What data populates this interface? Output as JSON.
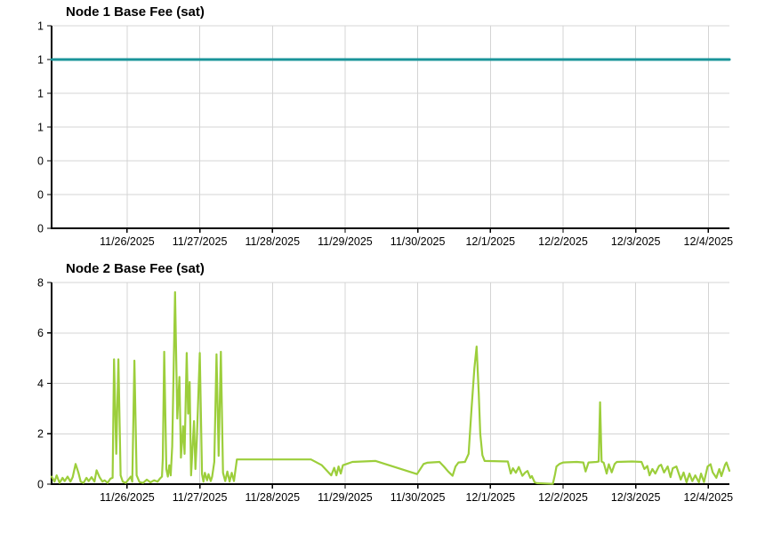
{
  "page": {
    "background": "#ffffff"
  },
  "chart_data": [
    {
      "type": "line",
      "title": "Node 1 Base Fee (sat)",
      "series_name": "Node 1 Base Fee",
      "line_color": "#1A949A",
      "grid_color": "#D4D4D4",
      "axis_color": "#000000",
      "grid": true,
      "legend": "none",
      "ylim": [
        0,
        1.2
      ],
      "xlim": [
        -1.04,
        8.29
      ],
      "yticks": [
        {
          "v": 1.2,
          "label": "1"
        },
        {
          "v": 1.0,
          "label": "1"
        },
        {
          "v": 0.8,
          "label": "1"
        },
        {
          "v": 0.6,
          "label": "1"
        },
        {
          "v": 0.4,
          "label": "0"
        },
        {
          "v": 0.2,
          "label": "0"
        },
        {
          "v": 0.0,
          "label": "0"
        }
      ],
      "xticks": [
        {
          "v": 0,
          "label": "11/26/2025"
        },
        {
          "v": 1,
          "label": "11/27/2025"
        },
        {
          "v": 2,
          "label": "11/28/2025"
        },
        {
          "v": 3,
          "label": "11/29/2025"
        },
        {
          "v": 4,
          "label": "11/30/2025"
        },
        {
          "v": 5,
          "label": "12/1/2025"
        },
        {
          "v": 6,
          "label": "12/2/2025"
        },
        {
          "v": 7,
          "label": "12/3/2025"
        },
        {
          "v": 8,
          "label": "12/4/2025"
        }
      ],
      "points": [
        [
          -1.04,
          1
        ],
        [
          8.29,
          1
        ]
      ]
    },
    {
      "type": "line",
      "title": "Node 2 Base Fee (sat)",
      "series_name": "Node 2 Base Fee",
      "line_color": "#9CCE3B",
      "grid_color": "#D4D4D4",
      "axis_color": "#000000",
      "grid": true,
      "legend": "none",
      "ylim": [
        0,
        8
      ],
      "xlim": [
        -1.04,
        8.29
      ],
      "yticks": [
        {
          "v": 8,
          "label": "8"
        },
        {
          "v": 6,
          "label": "6"
        },
        {
          "v": 4,
          "label": "4"
        },
        {
          "v": 2,
          "label": "2"
        },
        {
          "v": 0,
          "label": "0"
        }
      ],
      "xticks": [
        {
          "v": 0,
          "label": "11/26/2025"
        },
        {
          "v": 1,
          "label": "11/27/2025"
        },
        {
          "v": 2,
          "label": "11/28/2025"
        },
        {
          "v": 3,
          "label": "11/29/2025"
        },
        {
          "v": 4,
          "label": "11/30/2025"
        },
        {
          "v": 5,
          "label": "12/1/2025"
        },
        {
          "v": 6,
          "label": "12/2/2025"
        },
        {
          "v": 7,
          "label": "12/3/2025"
        },
        {
          "v": 8,
          "label": "12/4/2025"
        }
      ],
      "points": [
        [
          -1.04,
          0.3
        ],
        [
          -1.0,
          0.1
        ],
        [
          -0.97,
          0.35
        ],
        [
          -0.93,
          0.05
        ],
        [
          -0.89,
          0.25
        ],
        [
          -0.86,
          0.12
        ],
        [
          -0.82,
          0.3
        ],
        [
          -0.78,
          0.1
        ],
        [
          -0.75,
          0.28
        ],
        [
          -0.71,
          0.8
        ],
        [
          -0.67,
          0.45
        ],
        [
          -0.64,
          0.1
        ],
        [
          -0.6,
          0.05
        ],
        [
          -0.56,
          0.25
        ],
        [
          -0.53,
          0.12
        ],
        [
          -0.49,
          0.28
        ],
        [
          -0.45,
          0.1
        ],
        [
          -0.42,
          0.55
        ],
        [
          -0.38,
          0.28
        ],
        [
          -0.34,
          0.1
        ],
        [
          -0.31,
          0.15
        ],
        [
          -0.27,
          0.05
        ],
        [
          -0.23,
          0.22
        ],
        [
          -0.2,
          0.25
        ],
        [
          -0.18,
          4.95
        ],
        [
          -0.15,
          1.2
        ],
        [
          -0.12,
          4.95
        ],
        [
          -0.09,
          0.35
        ],
        [
          -0.06,
          0.1
        ],
        [
          -0.02,
          0.05
        ],
        [
          0.01,
          0.15
        ],
        [
          0.05,
          0.3
        ],
        [
          0.07,
          0.1
        ],
        [
          0.1,
          4.9
        ],
        [
          0.13,
          0.35
        ],
        [
          0.17,
          0.08
        ],
        [
          0.22,
          0.05
        ],
        [
          0.27,
          0.18
        ],
        [
          0.32,
          0.07
        ],
        [
          0.37,
          0.15
        ],
        [
          0.42,
          0.1
        ],
        [
          0.45,
          0.22
        ],
        [
          0.48,
          0.3
        ],
        [
          0.49,
          1.0
        ],
        [
          0.51,
          5.25
        ],
        [
          0.54,
          0.6
        ],
        [
          0.56,
          0.3
        ],
        [
          0.58,
          0.75
        ],
        [
          0.6,
          0.35
        ],
        [
          0.62,
          1.5
        ],
        [
          0.66,
          7.62
        ],
        [
          0.69,
          2.6
        ],
        [
          0.72,
          4.25
        ],
        [
          0.74,
          1.05
        ],
        [
          0.77,
          2.3
        ],
        [
          0.79,
          1.2
        ],
        [
          0.82,
          5.2
        ],
        [
          0.84,
          2.8
        ],
        [
          0.86,
          4.05
        ],
        [
          0.88,
          0.35
        ],
        [
          0.92,
          2.5
        ],
        [
          0.94,
          0.6
        ],
        [
          0.96,
          1.8
        ],
        [
          1.0,
          5.2
        ],
        [
          1.03,
          0.4
        ],
        [
          1.05,
          0.1
        ],
        [
          1.07,
          0.45
        ],
        [
          1.1,
          0.15
        ],
        [
          1.12,
          0.4
        ],
        [
          1.15,
          0.12
        ],
        [
          1.17,
          0.3
        ],
        [
          1.2,
          0.88
        ],
        [
          1.23,
          5.15
        ],
        [
          1.26,
          1.12
        ],
        [
          1.29,
          5.25
        ],
        [
          1.32,
          0.45
        ],
        [
          1.35,
          0.12
        ],
        [
          1.38,
          0.5
        ],
        [
          1.41,
          0.1
        ],
        [
          1.44,
          0.45
        ],
        [
          1.47,
          0.12
        ],
        [
          1.51,
          0.98
        ],
        [
          2.53,
          0.98
        ],
        [
          2.68,
          0.75
        ],
        [
          2.81,
          0.35
        ],
        [
          2.85,
          0.65
        ],
        [
          2.88,
          0.35
        ],
        [
          2.91,
          0.7
        ],
        [
          2.94,
          0.42
        ],
        [
          2.97,
          0.75
        ],
        [
          3.02,
          0.8
        ],
        [
          3.1,
          0.88
        ],
        [
          3.42,
          0.92
        ],
        [
          3.99,
          0.4
        ],
        [
          4.08,
          0.8
        ],
        [
          4.13,
          0.85
        ],
        [
          4.3,
          0.88
        ],
        [
          4.36,
          0.7
        ],
        [
          4.42,
          0.5
        ],
        [
          4.48,
          0.33
        ],
        [
          4.52,
          0.7
        ],
        [
          4.56,
          0.86
        ],
        [
          4.65,
          0.88
        ],
        [
          4.7,
          1.2
        ],
        [
          4.74,
          3.0
        ],
        [
          4.78,
          4.6
        ],
        [
          4.81,
          5.46
        ],
        [
          4.84,
          3.6
        ],
        [
          4.86,
          2.0
        ],
        [
          4.89,
          1.15
        ],
        [
          4.92,
          0.92
        ],
        [
          5.24,
          0.9
        ],
        [
          5.28,
          0.42
        ],
        [
          5.31,
          0.63
        ],
        [
          5.35,
          0.45
        ],
        [
          5.39,
          0.68
        ],
        [
          5.44,
          0.33
        ],
        [
          5.48,
          0.46
        ],
        [
          5.51,
          0.52
        ],
        [
          5.55,
          0.25
        ],
        [
          5.57,
          0.32
        ],
        [
          5.61,
          0.07
        ],
        [
          5.64,
          0.04
        ],
        [
          5.86,
          0.01
        ],
        [
          5.89,
          0.4
        ],
        [
          5.91,
          0.7
        ],
        [
          5.95,
          0.8
        ],
        [
          6.0,
          0.86
        ],
        [
          6.19,
          0.88
        ],
        [
          6.28,
          0.86
        ],
        [
          6.31,
          0.5
        ],
        [
          6.35,
          0.86
        ],
        [
          6.46,
          0.88
        ],
        [
          6.49,
          0.9
        ],
        [
          6.51,
          3.25
        ],
        [
          6.53,
          0.9
        ],
        [
          6.56,
          0.85
        ],
        [
          6.6,
          0.42
        ],
        [
          6.63,
          0.79
        ],
        [
          6.67,
          0.47
        ],
        [
          6.71,
          0.8
        ],
        [
          6.74,
          0.88
        ],
        [
          6.95,
          0.9
        ],
        [
          7.08,
          0.88
        ],
        [
          7.12,
          0.6
        ],
        [
          7.16,
          0.72
        ],
        [
          7.19,
          0.35
        ],
        [
          7.23,
          0.6
        ],
        [
          7.27,
          0.42
        ],
        [
          7.32,
          0.72
        ],
        [
          7.35,
          0.77
        ],
        [
          7.39,
          0.46
        ],
        [
          7.44,
          0.7
        ],
        [
          7.48,
          0.28
        ],
        [
          7.51,
          0.63
        ],
        [
          7.56,
          0.7
        ],
        [
          7.62,
          0.18
        ],
        [
          7.66,
          0.46
        ],
        [
          7.7,
          0.07
        ],
        [
          7.74,
          0.42
        ],
        [
          7.78,
          0.12
        ],
        [
          7.82,
          0.35
        ],
        [
          7.87,
          0.07
        ],
        [
          7.9,
          0.42
        ],
        [
          7.94,
          0.08
        ],
        [
          7.99,
          0.7
        ],
        [
          8.03,
          0.79
        ],
        [
          8.06,
          0.47
        ],
        [
          8.11,
          0.25
        ],
        [
          8.15,
          0.6
        ],
        [
          8.18,
          0.32
        ],
        [
          8.23,
          0.77
        ],
        [
          8.25,
          0.86
        ],
        [
          8.29,
          0.53
        ]
      ]
    }
  ]
}
